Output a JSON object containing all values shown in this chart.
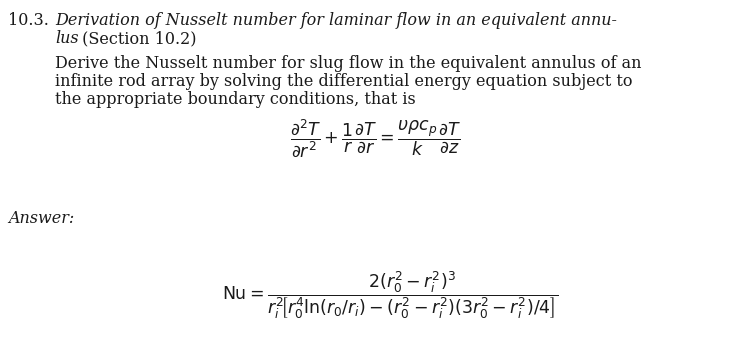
{
  "background_color": "#ffffff",
  "text_color": "#1a1a1a",
  "font_size_body": 11.5,
  "font_size_math": 12.5,
  "line1_num": "10.3.",
  "line1_italic": "Derivation of Nusselt number for laminar flow in an equivalent annu-",
  "line2_italic": "lus",
  "line2_normal": " (Section 10.2)",
  "body_lines": [
    "Derive the Nusselt number for slug flow in the equivalent annulus of an",
    "infinite rod array by solving the differential energy equation subject to",
    "the appropriate boundary conditions, that is"
  ],
  "answer_label": "Answer:",
  "eq1_str": "$\\dfrac{\\partial^2 T}{\\partial r^2} + \\dfrac{1}{r}\\dfrac{\\partial T}{\\partial r} = \\dfrac{\\upsilon\\rho c_p}{k}\\dfrac{\\partial T}{\\partial z}$",
  "nu_str": "$\\mathrm{Nu} = \\dfrac{2(r_0^2 - r_i^2)^3}{r_i^2\\!\\left[r_0^4\\ln(r_0/r_i) - (r_0^2 - r_i^2)(3r_0^2 - r_i^2)/4\\right]}$"
}
